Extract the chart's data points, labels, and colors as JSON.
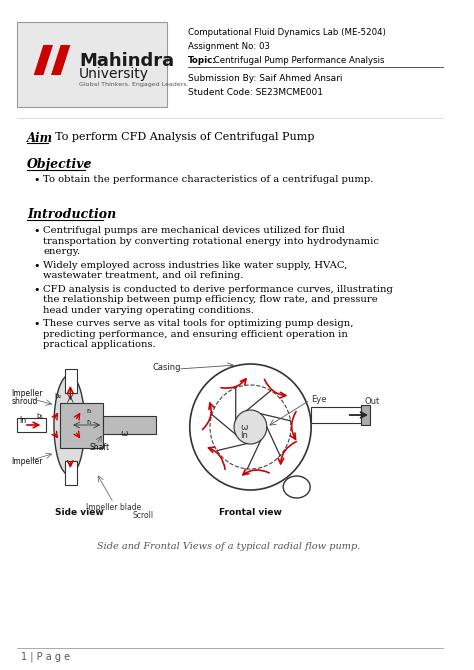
{
  "title_line1": "Computational Fluid Dynamics Lab (ME-5204)",
  "title_line2": "Assignment No: 03",
  "title_line3_bold": "Topic:",
  "title_line3_rest": " Centrifugal Pump Performance Analysis",
  "submission": "Submission By: Saif Ahmed Ansari",
  "student_code": "Student Code: SE23MCME001",
  "aim_label": "Aim",
  "aim_text": ": To perform CFD Analysis of Centrifugal Pump",
  "objective_label": "Objective",
  "objective_colon": ":",
  "objective_bullet": "To obtain the performance characteristics of a centrifugal pump.",
  "intro_label": "Introduction",
  "intro_colon": ":",
  "intro_bullets": [
    "Centrifugal pumps are mechanical devices utilized for fluid transportation by converting rotational energy into hydrodynamic energy.",
    "Widely employed across industries like water supply, HVAC, wastewater treatment, and oil refining.",
    "CFD analysis is conducted to derive performance curves, illustrating the relationship between pump efficiency, flow rate, and pressure head under varying operating conditions.",
    "These curves serve as vital tools for optimizing pump design, predicting performance, and ensuring efficient operation in practical applications."
  ],
  "diagram_caption": "Side and Frontal Views of a typical radial flow pump.",
  "page_footer": "1 | P a g e",
  "bg_color": "#ffffff",
  "text_color": "#000000",
  "gray_color": "#888888",
  "red_color": "#cc0000",
  "logo_box_color": "#e8e8e8",
  "header_line_color": "#000000"
}
